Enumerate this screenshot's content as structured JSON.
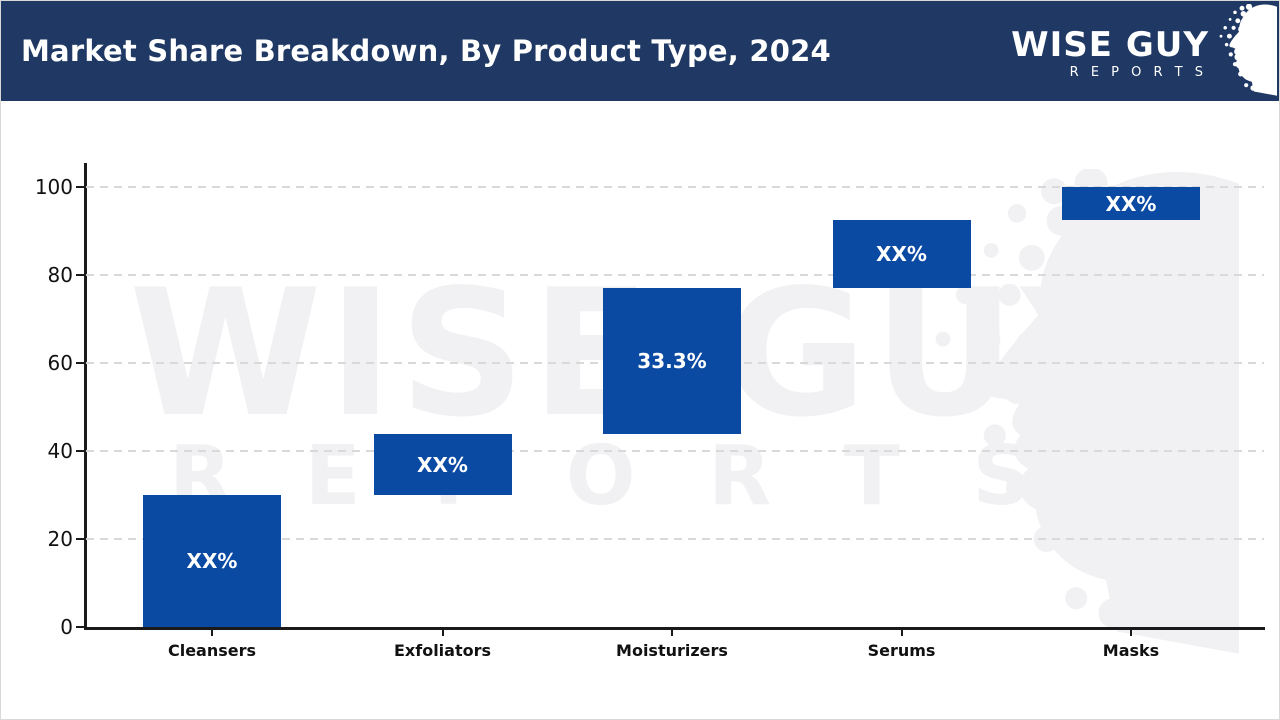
{
  "header": {
    "title": "Market Share Breakdown, By Product Type, 2024",
    "logo_line1": "WISE GUY",
    "logo_line2": "R E P O R T S"
  },
  "watermark": {
    "line1": "WISE GUY",
    "line2": "R E P O R T S"
  },
  "chart_data": {
    "type": "bar",
    "variant": "floating-waterfall",
    "title": "Market Share Breakdown, By Product Type, 2024",
    "xlabel": "",
    "ylabel": "",
    "categories": [
      "Cleansers",
      "Exfoliators",
      "Moisturizers",
      "Serums",
      "Masks"
    ],
    "segments": [
      {
        "category": "Cleansers",
        "start": 0,
        "end": 30,
        "label": "XX%"
      },
      {
        "category": "Exfoliators",
        "start": 30,
        "end": 43.8,
        "label": "XX%"
      },
      {
        "category": "Moisturizers",
        "start": 43.8,
        "end": 77.1,
        "label": "33.3%"
      },
      {
        "category": "Serums",
        "start": 77.1,
        "end": 92.5,
        "label": "XX%"
      },
      {
        "category": "Masks",
        "start": 92.5,
        "end": 100,
        "label": "XX%"
      }
    ],
    "yticks": [
      0,
      20,
      40,
      60,
      80,
      100
    ],
    "ylim": [
      0,
      105
    ],
    "grid": true,
    "legend": false,
    "colors": {
      "header_bg": "#1f3864",
      "bar": "#0b4aa2",
      "bar_label": "#ffffff",
      "grid": "#d9d9d9",
      "axis": "#1a1a1a",
      "watermark": "#f1f1f3"
    }
  }
}
